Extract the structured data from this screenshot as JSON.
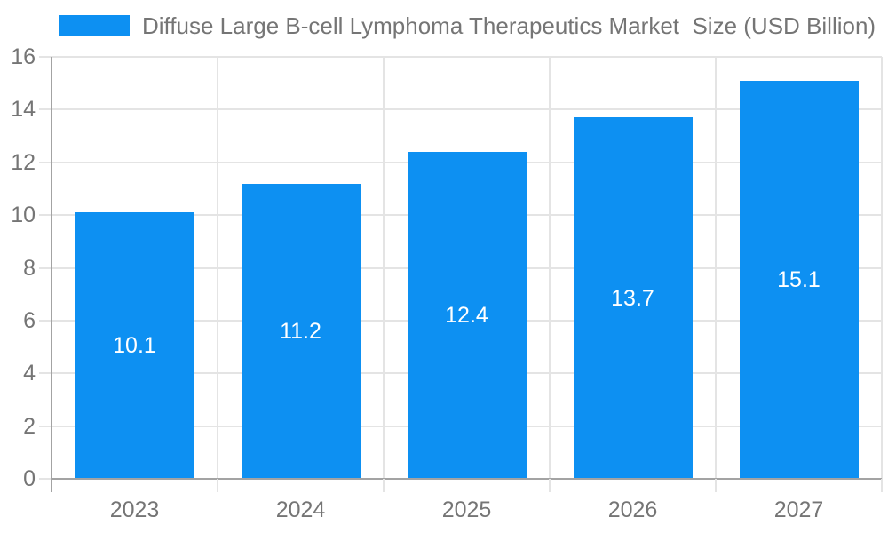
{
  "legend": {
    "swatch_color": "#0d90f2",
    "label": "Diffuse Large B-cell Lymphoma Therapeutics Market  Size (USD Billion)"
  },
  "chart_data": {
    "type": "bar",
    "title": "Diffuse Large B-cell Lymphoma Therapeutics Market  Size (USD Billion)",
    "categories": [
      "2023",
      "2024",
      "2025",
      "2026",
      "2027"
    ],
    "values": [
      10.1,
      11.2,
      12.4,
      13.7,
      15.1
    ],
    "value_labels": [
      "10.1",
      "11.2",
      "12.4",
      "13.7",
      "15.1"
    ],
    "xlabel": "",
    "ylabel": "",
    "ylim": [
      0,
      16
    ],
    "ytick_step": 2,
    "ytick_labels": [
      "0",
      "2",
      "4",
      "6",
      "8",
      "10",
      "12",
      "14",
      "16"
    ],
    "grid": true,
    "legend_position": "top-left",
    "value_label_position": "inside-center",
    "colors": {
      "bar": "#0d90f2",
      "axis": "#a3a3a3",
      "gridline": "#e4e4e4",
      "text": "#757575",
      "value_text": "#ffffff",
      "background": "#ffffff"
    }
  }
}
